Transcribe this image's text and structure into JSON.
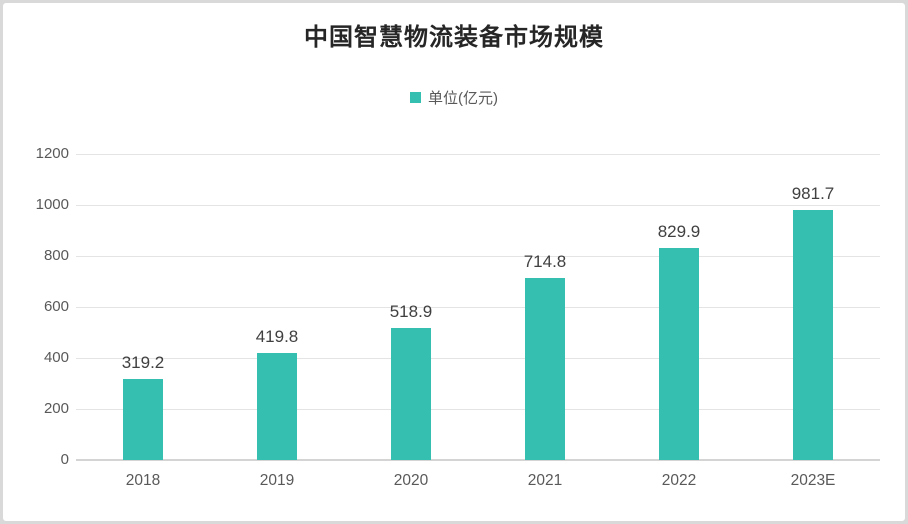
{
  "title": "中国智慧物流装备市场规模",
  "legend": {
    "label": "单位(亿元)",
    "marker_color": "#34bfb0"
  },
  "colors": {
    "bar": "#34bfb0",
    "gridline": "#e4e4e4",
    "baseline": "#d4d4d4",
    "axis_text": "#595959",
    "value_label_text": "#404040",
    "title_text": "#262626",
    "card_border": "#d9d9d9",
    "background": "#ffffff"
  },
  "chart_data": {
    "type": "bar",
    "title": "中国智慧物流装备市场规模",
    "legend_entries": [
      "单位(亿元)"
    ],
    "legend_position": "top-center",
    "categories": [
      "2018",
      "2019",
      "2020",
      "2021",
      "2022",
      "2023E"
    ],
    "values": [
      319.2,
      419.8,
      518.9,
      714.8,
      829.9,
      981.7
    ],
    "value_labels_shown": true,
    "xlabel": "",
    "ylabel": "",
    "ylim": [
      0,
      1200
    ],
    "yticks": [
      0,
      200,
      400,
      600,
      800,
      1000,
      1200
    ],
    "grid": true,
    "bar_color": "#34bfb0"
  }
}
